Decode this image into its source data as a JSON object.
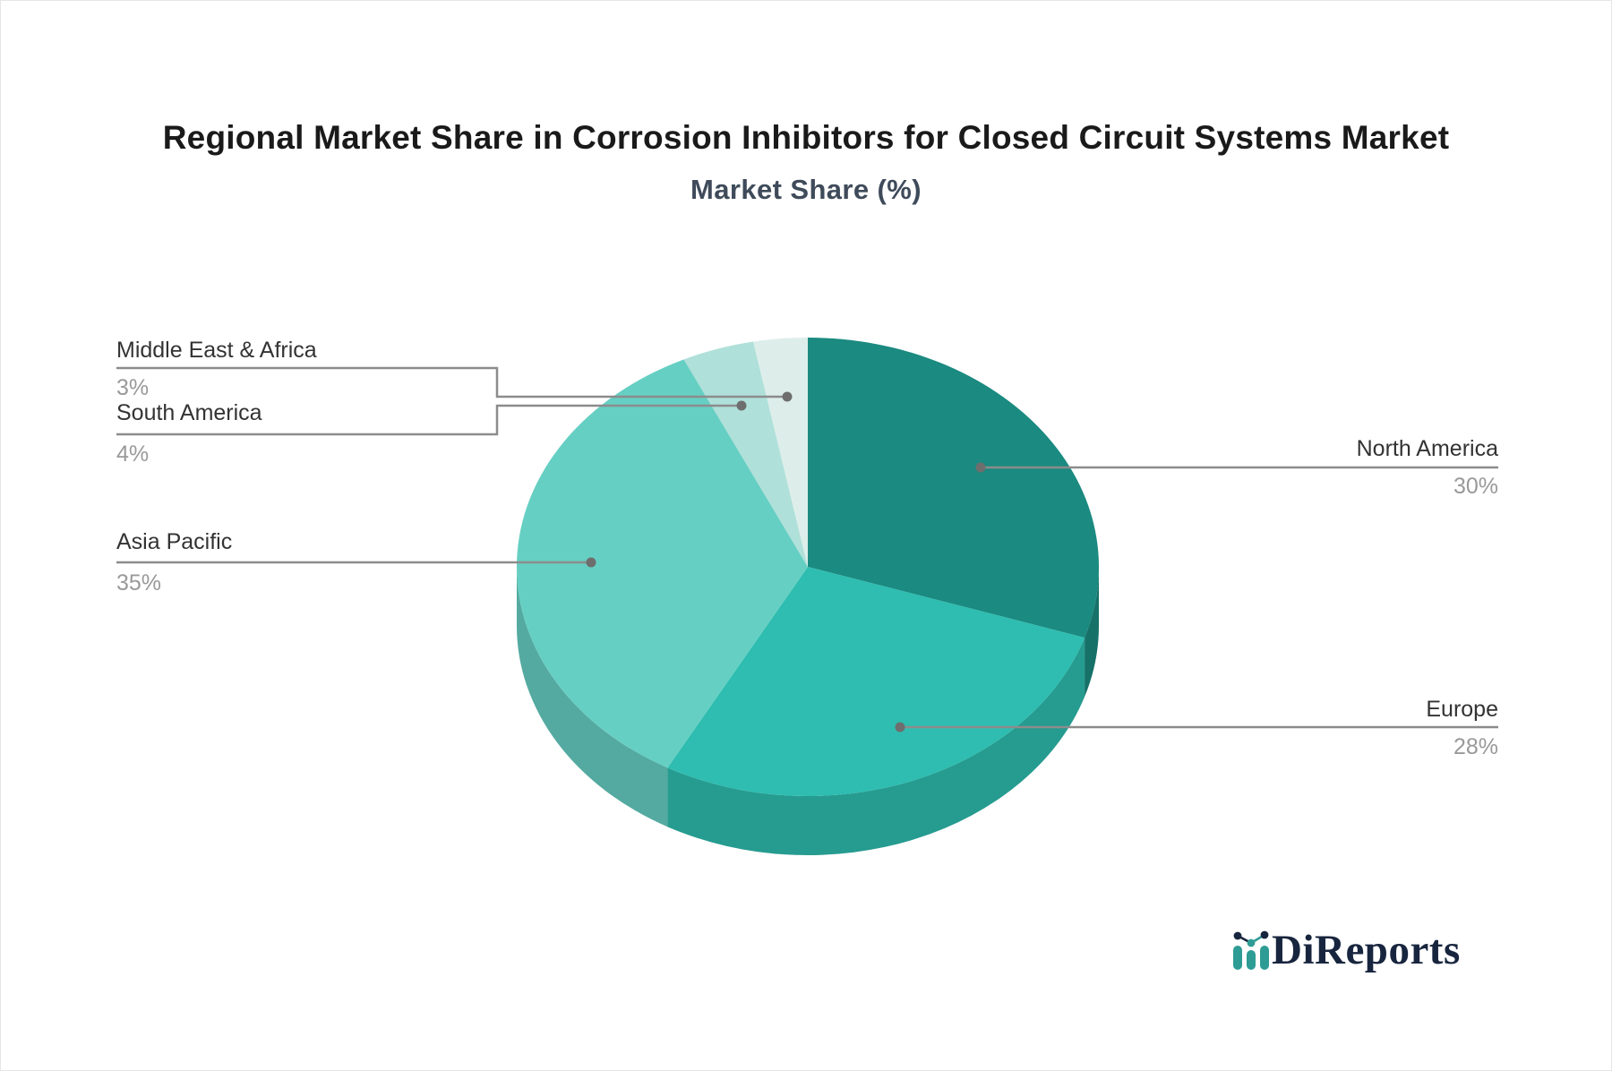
{
  "page": {
    "background": "#ffffff"
  },
  "chart_data": {
    "type": "pie",
    "title": "Regional Market Share in Corrosion Inhibitors for Closed Circuit Systems Market",
    "subtitle": "Market Share (%)",
    "unit": "%",
    "style_3d": true,
    "start_angle_deg": 0,
    "direction": "clockwise",
    "legend_position": "callout-labels",
    "slices": [
      {
        "label": "North America",
        "value": 30,
        "pct": "30%",
        "color": "#1B8A80"
      },
      {
        "label": "Europe",
        "value": 28,
        "pct": "28%",
        "color": "#2EBDB0"
      },
      {
        "label": "Asia Pacific",
        "value": 35,
        "pct": "35%",
        "color": "#66CFC3"
      },
      {
        "label": "South America",
        "value": 4,
        "pct": "4%",
        "color": "#AFE0D9"
      },
      {
        "label": "Middle East & Africa",
        "value": 3,
        "pct": "3%",
        "color": "#DDEEEA"
      }
    ],
    "label_color": "#333333",
    "pct_color": "#999999",
    "leader_color": "#8C8C8C",
    "dot_color": "#6E6E6E"
  },
  "branding": {
    "logo_text": "DiReports",
    "logo_text_color": "#18253E",
    "logo_accent_color": "#2E9C95"
  }
}
